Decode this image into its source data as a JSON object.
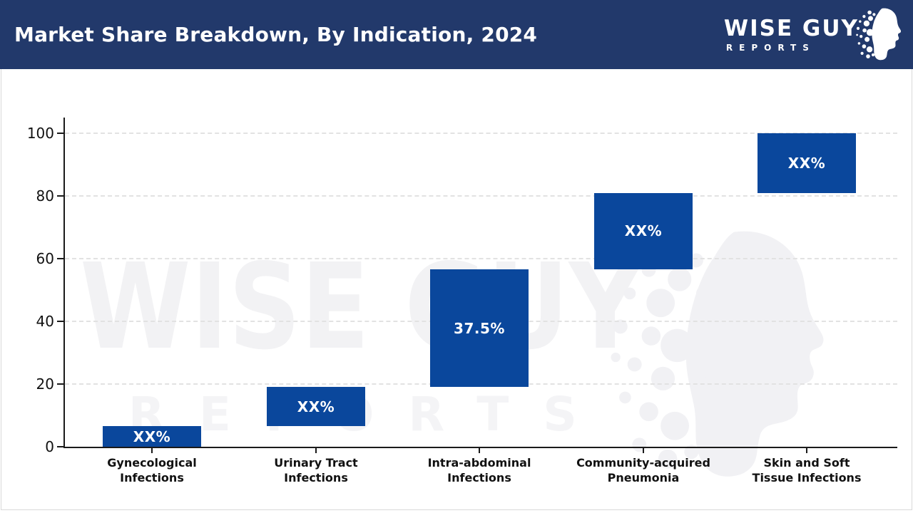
{
  "header": {
    "title": "Market Share Breakdown, By Indication, 2024",
    "logo": {
      "line1": "WISE GUY",
      "line2": "REPORTS"
    }
  },
  "watermark": {
    "line1": "WISE GUY",
    "line2": "REPORTS"
  },
  "colors": {
    "header_navy": "#22396b",
    "bar_blue": "#0a479c",
    "gridline_gray": "#e2e2e2",
    "watermark_gray": "#f2f2f4"
  },
  "chart_data": {
    "type": "bar",
    "subtype": "floating-waterfall",
    "title": "Market Share Breakdown, By Indication, 2024",
    "categories": [
      "Gynecological\nInfections",
      "Urinary Tract\nInfections",
      "Intra-abdominal\nInfections",
      "Community-acquired\nPneumonia",
      "Skin and Soft\nTissue Infections"
    ],
    "bars": [
      {
        "start": 0,
        "end": 6.5,
        "value_label": "XX%"
      },
      {
        "start": 6.5,
        "end": 19,
        "value_label": "XX%"
      },
      {
        "start": 19,
        "end": 56.5,
        "value_label": "37.5%"
      },
      {
        "start": 56.5,
        "end": 81,
        "value_label": "XX%"
      },
      {
        "start": 81,
        "end": 100,
        "value_label": "XX%"
      }
    ],
    "ylim": [
      0,
      100
    ],
    "yticks": [
      0,
      20,
      40,
      60,
      80,
      100
    ],
    "xlabel": "",
    "ylabel": "",
    "grid": "horizontal-dashed",
    "legend": "none",
    "bar_color": "#0a479c"
  }
}
